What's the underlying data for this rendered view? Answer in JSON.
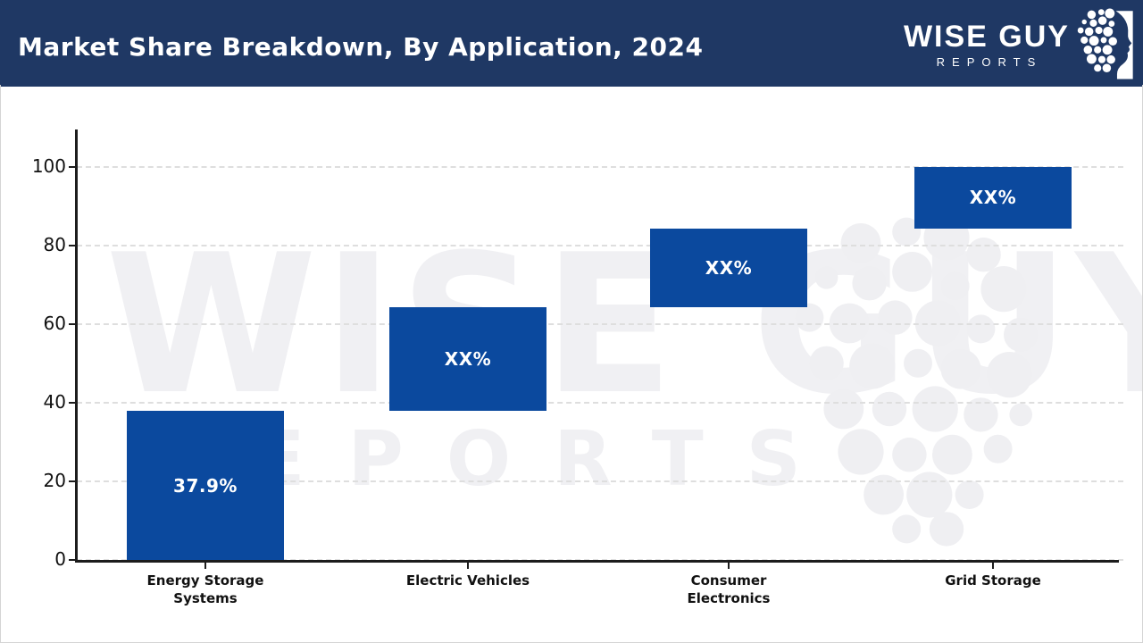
{
  "header": {
    "title": "Market Share Breakdown, By Application, 2024",
    "bg_color": "#1f3864",
    "brand": {
      "name": "WISE GUY",
      "subtitle": "REPORTS"
    }
  },
  "watermark": {
    "line1": "WISE GUY",
    "line2": "REPORTS"
  },
  "chart_data": {
    "type": "bar",
    "subtype": "floating-waterfall",
    "title": "Market Share Breakdown, By Application, 2024",
    "categories": [
      "Energy Storage Systems",
      "Electric Vehicles",
      "Consumer Electronics",
      "Grid Storage"
    ],
    "bars": [
      {
        "category": "Energy Storage Systems",
        "label_lines": [
          "Energy Storage",
          "Systems"
        ],
        "start": 0,
        "end": 37.9,
        "value_label": "37.9%"
      },
      {
        "category": "Electric Vehicles",
        "label_lines": [
          "Electric Vehicles"
        ],
        "start": 37.9,
        "end": 64.4,
        "value_label": "XX%"
      },
      {
        "category": "Consumer Electronics",
        "label_lines": [
          "Consumer",
          "Electronics"
        ],
        "start": 64.4,
        "end": 84.4,
        "value_label": "XX%"
      },
      {
        "category": "Grid Storage",
        "label_lines": [
          "Grid Storage"
        ],
        "start": 84.4,
        "end": 100,
        "value_label": "XX%"
      }
    ],
    "ylim": [
      0,
      100
    ],
    "yticks": [
      0,
      20,
      40,
      60,
      80,
      100
    ],
    "xlabel": "",
    "ylabel": "",
    "grid": "horizontal-dashed",
    "legend": "none",
    "colors": {
      "bar": "#0b499e",
      "value_label": "#ffffff",
      "grid": "#dedede",
      "axis": "#1c1c1c",
      "tick_label": "#111111",
      "header_bg": "#1f3864",
      "watermark": "#f0f0f3"
    }
  }
}
